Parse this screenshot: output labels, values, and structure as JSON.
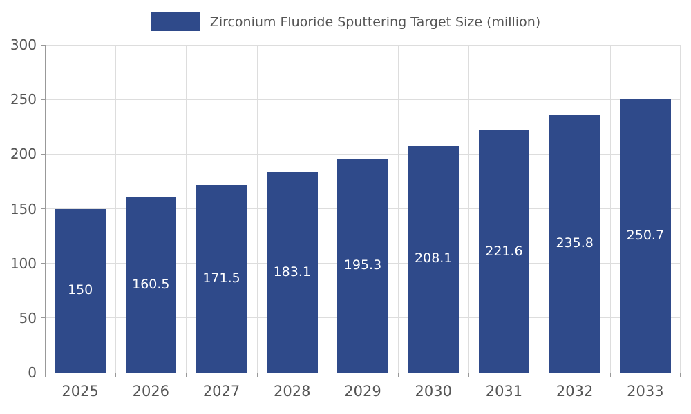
{
  "chart_data": {
    "type": "bar",
    "title": "Zirconium Fluoride Sputtering Target Size (million)",
    "categories": [
      "2025",
      "2026",
      "2027",
      "2028",
      "2029",
      "2030",
      "2031",
      "2032",
      "2033"
    ],
    "values": [
      150,
      160.5,
      171.5,
      183.1,
      195.3,
      208.1,
      221.6,
      235.8,
      250.7
    ],
    "value_labels": [
      "150",
      "160.5",
      "171.5",
      "183.1",
      "195.3",
      "208.1",
      "221.6",
      "235.8",
      "250.7"
    ],
    "xlabel": "",
    "ylabel": "",
    "ylim": [
      0,
      300
    ],
    "yticks": [
      0,
      50,
      100,
      150,
      200,
      250,
      300
    ],
    "grid": true,
    "legend_position": "top",
    "legend": {
      "label": "Zirconium Fluoride Sputtering Target Size (million)",
      "swatch_color": "#2f4a8a"
    },
    "colors": {
      "bar": "#2f4a8a",
      "grid": "#dddddd",
      "axis": "#999999",
      "tick_text": "#555555",
      "value_text": "#ffffff"
    }
  }
}
